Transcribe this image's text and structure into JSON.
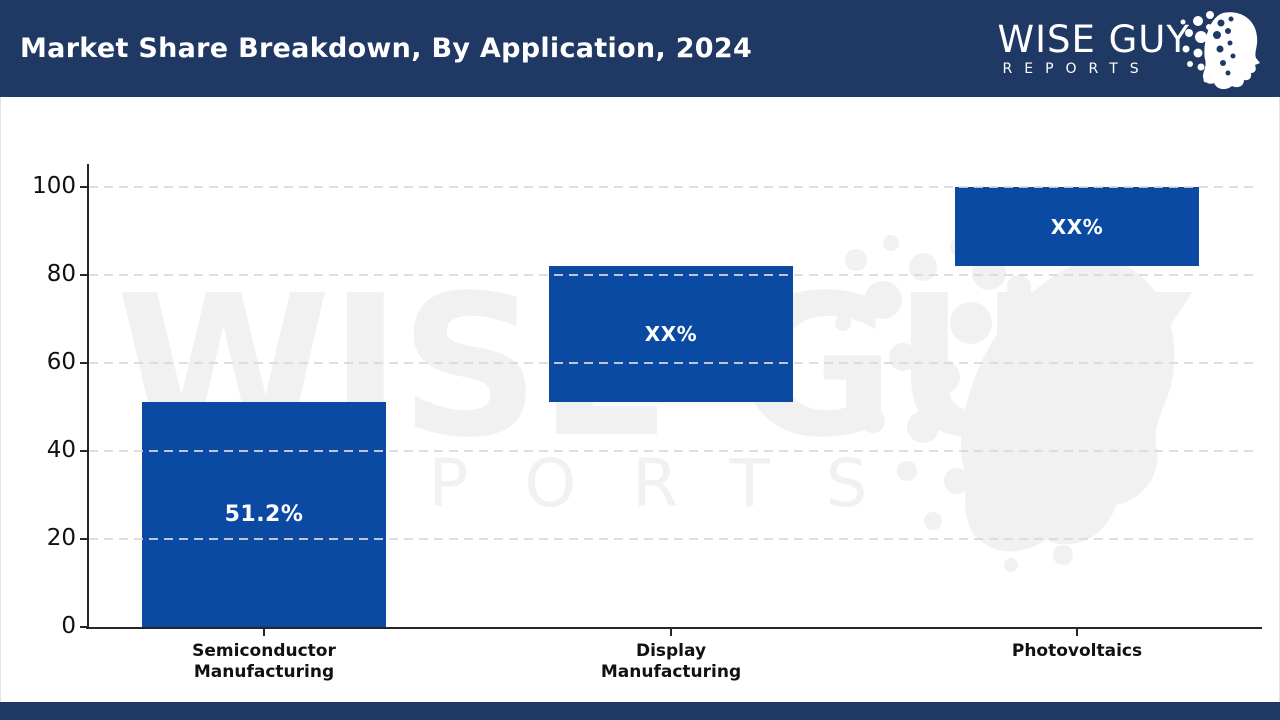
{
  "header": {
    "title": "Market Share Breakdown, By Application, 2024",
    "logo": {
      "brand": "WISE GUY",
      "sub": "REPORTS"
    }
  },
  "watermark": {
    "brand": "WISE GUY",
    "sub": "REPORTS"
  },
  "chart_data": {
    "type": "bar",
    "subtype": "waterfall",
    "title": "Market Share Breakdown, By Application, 2024",
    "categories": [
      "Semiconductor Manufacturing",
      "Display Manufacturing",
      "Photovoltaics"
    ],
    "category_lines": [
      [
        "Semiconductor",
        "Manufacturing"
      ],
      [
        "Display",
        "Manufacturing"
      ],
      [
        "Photovoltaics"
      ]
    ],
    "segments": [
      {
        "category": "Semiconductor Manufacturing",
        "start": 0,
        "end": 51.2,
        "label": "51.2%"
      },
      {
        "category": "Display Manufacturing",
        "start": 51.2,
        "end": 82,
        "label": "XX%"
      },
      {
        "category": "Photovoltaics",
        "start": 82,
        "end": 100,
        "label": "XX%"
      }
    ],
    "xlabel": "",
    "ylabel": "",
    "yticks": [
      0,
      20,
      40,
      60,
      80,
      100
    ],
    "ylim": [
      0,
      105
    ],
    "grid": true,
    "gridline_style": "dashed",
    "legend": null
  },
  "colors": {
    "header_bg": "#1f3864",
    "footer_bg": "#1f3864",
    "bar": "#0b4aa2",
    "grid": "#d9d9d9",
    "axis": "#262626",
    "text": "#111111",
    "watermark": "#f1f1f1"
  }
}
